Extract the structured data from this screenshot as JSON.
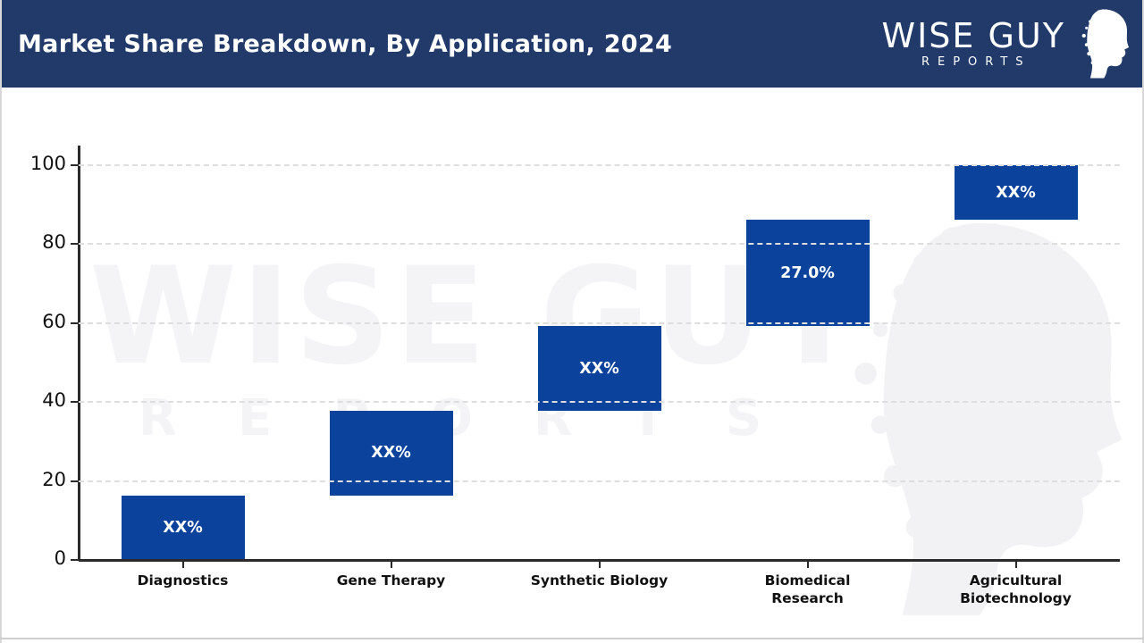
{
  "header": {
    "title": "Market Share Breakdown, By Application, 2024",
    "logo": {
      "line1": "WISE GUY",
      "line2": "REPORTS"
    }
  },
  "watermark": {
    "line1": "WISE GUY",
    "line2": "REPORTS"
  },
  "colors": {
    "header_bg": "#213a6a",
    "bar": "#0b429c",
    "bar_label": "#ffffff",
    "axis": "#2a2a2a",
    "grid": "#dedede",
    "watermark": "#f4f4f6"
  },
  "chart_data": {
    "type": "bar",
    "subtype": "waterfall",
    "title": "Market Share Breakdown, By Application, 2024",
    "xlabel": "",
    "ylabel": "",
    "categories": [
      "Diagnostics",
      "Gene Therapy",
      "Synthetic Biology",
      "Biomedical\nResearch",
      "Agricultural\nBiotechnology"
    ],
    "bars": [
      {
        "category": "Diagnostics",
        "label": "XX%",
        "start": 0,
        "end": 16.4
      },
      {
        "category": "Gene Therapy",
        "label": "XX%",
        "start": 16.4,
        "end": 37.8
      },
      {
        "category": "Synthetic Biology",
        "label": "XX%",
        "start": 37.8,
        "end": 59.2
      },
      {
        "category": "Biomedical Research",
        "label": "27.0%",
        "start": 59.2,
        "end": 86.2,
        "value": 27.0
      },
      {
        "category": "Agricultural Biotechnology",
        "label": "XX%",
        "start": 86.2,
        "end": 100
      }
    ],
    "yticks": [
      0,
      20,
      40,
      60,
      80,
      100
    ],
    "ylim": [
      0,
      105
    ],
    "grid": "dashed-horizontal",
    "legend": "none",
    "bar_color": "#0b429c",
    "bar_label_color": "#ffffff"
  }
}
